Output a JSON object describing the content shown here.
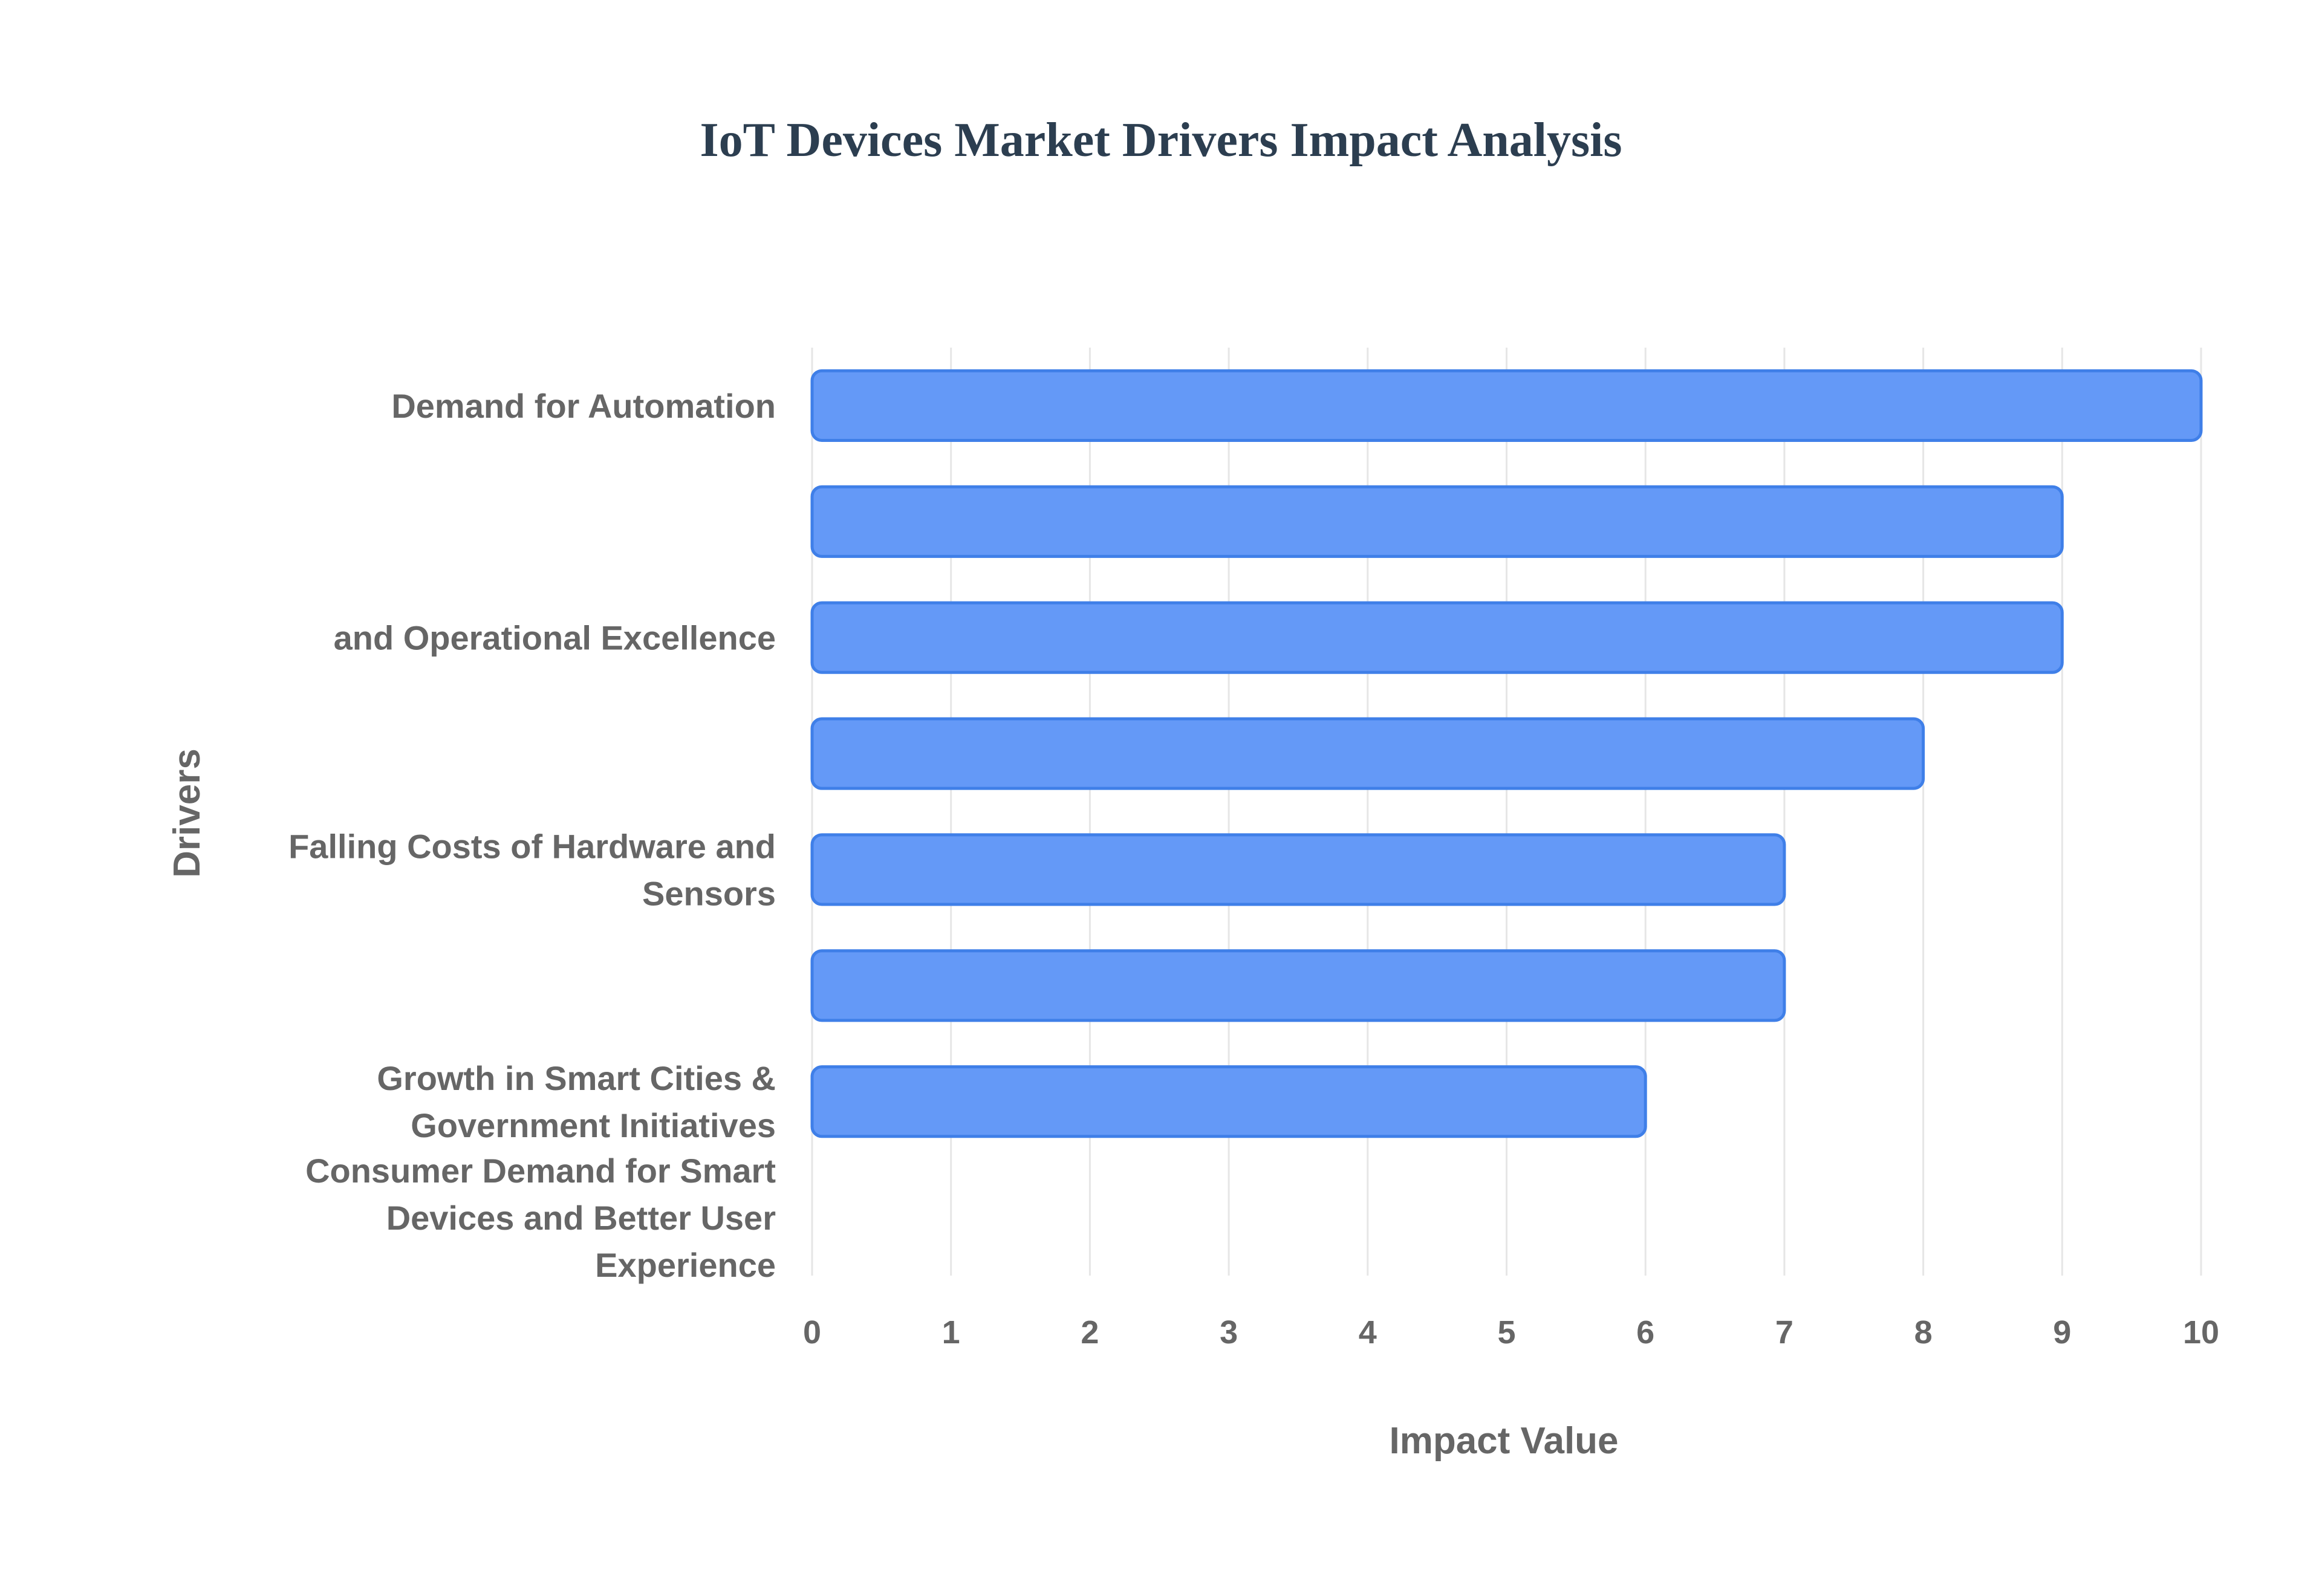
{
  "chart_data": {
    "type": "bar",
    "orientation": "horizontal",
    "title": "IoT Devices Market Drivers Impact Analysis",
    "xlabel": "Impact Value",
    "ylabel": "Drivers",
    "xlim": [
      0,
      10
    ],
    "x_ticks": [
      "0",
      "1",
      "2",
      "3",
      "4",
      "5",
      "6",
      "7",
      "8",
      "9",
      "10"
    ],
    "grid": true,
    "legend": "none",
    "category_labels": [
      [
        "Demand for Automation"
      ],
      [],
      [
        "and Operational Excellence"
      ],
      [],
      [
        "Falling Costs of Hardware and",
        "Sensors"
      ],
      [],
      [
        "Growth in Smart Cities &",
        "Government Initiatives"
      ],
      [
        "Consumer Demand for Smart",
        "Devices and Better User",
        "Experience"
      ]
    ],
    "values": [
      10,
      9,
      9,
      8,
      7,
      7,
      6,
      null
    ],
    "colors": {
      "bar_fill": "#6499f7",
      "bar_stroke": "#3f7fe8",
      "grid": "#e6e6e6",
      "title": "#2c3e50",
      "text": "#666666"
    }
  }
}
